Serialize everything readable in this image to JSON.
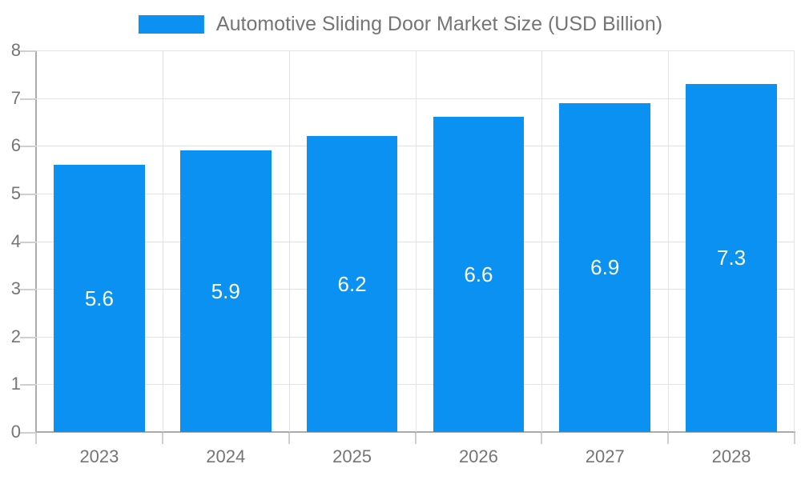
{
  "chart_data": {
    "type": "bar",
    "legend_label": "Automotive Sliding Door Market Size (USD Billion)",
    "legend_position": "top-center",
    "categories": [
      "2023",
      "2024",
      "2025",
      "2026",
      "2027",
      "2028"
    ],
    "values": [
      5.6,
      5.9,
      6.2,
      6.6,
      6.9,
      7.3
    ],
    "value_labels": [
      "5.6",
      "5.9",
      "6.2",
      "6.6",
      "6.9",
      "7.3"
    ],
    "yticks": [
      0,
      1,
      2,
      3,
      4,
      5,
      6,
      7,
      8
    ],
    "ylim": [
      0,
      8
    ],
    "xlabel": "",
    "ylabel": "",
    "grid": true,
    "colors": {
      "bar": "#0A91F2",
      "grid_line": "#E3E3E3",
      "axis_line": "#ABABAB",
      "tick_line": "#CFCFCF",
      "tick_label": "#757575",
      "legend_label": "#757575",
      "bar_label": "#FFFFFF",
      "background": "#FFFFFF"
    }
  }
}
